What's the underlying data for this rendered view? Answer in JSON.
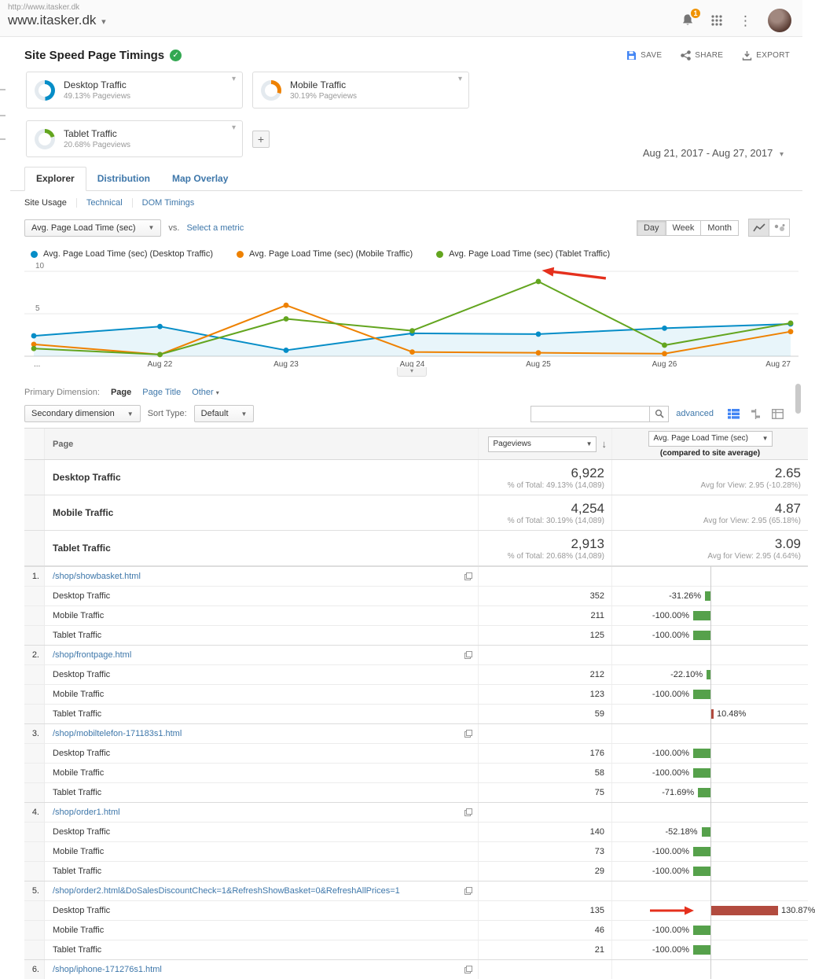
{
  "topbar": {
    "url_small": "http://www.itasker.dk",
    "account_title": "www.itasker.dk",
    "notification_count": "1"
  },
  "header": {
    "title": "Site Speed Page Timings",
    "actions": {
      "save": "SAVE",
      "share": "SHARE",
      "export": "EXPORT"
    },
    "date_range": "Aug 21, 2017 - Aug 27, 2017"
  },
  "segments": [
    {
      "name": "Desktop Traffic",
      "detail": "49.13% Pageviews",
      "pct": 49.13,
      "color": "#058dc7"
    },
    {
      "name": "Mobile Traffic",
      "detail": "30.19% Pageviews",
      "pct": 30.19,
      "color": "#ee8100"
    },
    {
      "name": "Tablet Traffic",
      "detail": "20.68% Pageviews",
      "pct": 20.68,
      "color": "#63a51f"
    }
  ],
  "tabs": [
    "Explorer",
    "Distribution",
    "Map Overlay"
  ],
  "subtabs": [
    "Site Usage",
    "Technical",
    "DOM Timings"
  ],
  "metric_bar": {
    "metric": "Avg. Page Load Time (sec)",
    "vs_label": "vs.",
    "select_metric": "Select a metric",
    "granularity": [
      "Day",
      "Week",
      "Month"
    ],
    "granularity_active": "Day"
  },
  "chart_data": {
    "type": "line",
    "x": [
      "...",
      "Aug 22",
      "Aug 23",
      "Aug 24",
      "Aug 25",
      "Aug 26",
      "Aug 27"
    ],
    "series": [
      {
        "name": "Avg. Page Load Time (sec) (Desktop Traffic)",
        "color": "#058dc7",
        "area": true,
        "values": [
          2.4,
          3.5,
          0.7,
          2.7,
          2.6,
          3.3,
          3.8
        ]
      },
      {
        "name": "Avg. Page Load Time (sec) (Mobile Traffic)",
        "color": "#ee8100",
        "values": [
          1.4,
          0.2,
          6.0,
          0.5,
          0.4,
          0.3,
          2.9
        ]
      },
      {
        "name": "Avg. Page Load Time (sec) (Tablet Traffic)",
        "color": "#63a51f",
        "values": [
          0.9,
          0.2,
          4.4,
          3.0,
          8.8,
          1.3,
          3.9
        ]
      }
    ],
    "ylim": [
      0,
      10
    ],
    "yticks": [
      5,
      10
    ],
    "legend_position": "top",
    "annotation": "red arrow pointing at Tablet Traffic peak on Aug 25"
  },
  "dimension_bar": {
    "label": "Primary Dimension:",
    "items": [
      "Page",
      "Page Title",
      "Other"
    ]
  },
  "table": {
    "controls": {
      "secondary_dimension": "Secondary dimension",
      "sort_type_label": "Sort Type:",
      "sort_type_value": "Default",
      "search_value": "",
      "advanced": "advanced"
    },
    "columns": {
      "page": "Page",
      "pageviews": "Pageviews",
      "metric": "Avg. Page Load Time (sec)",
      "metric_note": "(compared to site average)"
    },
    "summary_rows": [
      {
        "label": "Desktop Traffic",
        "pageviews": "6,922",
        "pageviews_note": "% of Total: 49.13% (14,089)",
        "value": "2.65",
        "value_note": "Avg for View: 2.95 (-10.28%)"
      },
      {
        "label": "Mobile Traffic",
        "pageviews": "4,254",
        "pageviews_note": "% of Total: 30.19% (14,089)",
        "value": "4.87",
        "value_note": "Avg for View: 2.95 (65.18%)"
      },
      {
        "label": "Tablet Traffic",
        "pageviews": "2,913",
        "pageviews_note": "% of Total: 20.68% (14,089)",
        "value": "3.09",
        "value_note": "Avg for View: 2.95 (4.64%)"
      }
    ],
    "groups": [
      {
        "index": "1.",
        "page": "/shop/showbasket.html",
        "rows": [
          {
            "label": "Desktop Traffic",
            "pageviews": "352",
            "delta": "-31.26%",
            "delta_value": -31.26
          },
          {
            "label": "Mobile Traffic",
            "pageviews": "211",
            "delta": "-100.00%",
            "delta_value": -100
          },
          {
            "label": "Tablet Traffic",
            "pageviews": "125",
            "delta": "-100.00%",
            "delta_value": -100
          }
        ]
      },
      {
        "index": "2.",
        "page": "/shop/frontpage.html",
        "rows": [
          {
            "label": "Desktop Traffic",
            "pageviews": "212",
            "delta": "-22.10%",
            "delta_value": -22.1
          },
          {
            "label": "Mobile Traffic",
            "pageviews": "123",
            "delta": "-100.00%",
            "delta_value": -100
          },
          {
            "label": "Tablet Traffic",
            "pageviews": "59",
            "delta": "10.48%",
            "delta_value": 10.48
          }
        ]
      },
      {
        "index": "3.",
        "page": "/shop/mobiltelefon-171183s1.html",
        "rows": [
          {
            "label": "Desktop Traffic",
            "pageviews": "176",
            "delta": "-100.00%",
            "delta_value": -100
          },
          {
            "label": "Mobile Traffic",
            "pageviews": "58",
            "delta": "-100.00%",
            "delta_value": -100
          },
          {
            "label": "Tablet Traffic",
            "pageviews": "75",
            "delta": "-71.69%",
            "delta_value": -71.69
          }
        ]
      },
      {
        "index": "4.",
        "page": "/shop/order1.html",
        "rows": [
          {
            "label": "Desktop Traffic",
            "pageviews": "140",
            "delta": "-52.18%",
            "delta_value": -52.18
          },
          {
            "label": "Mobile Traffic",
            "pageviews": "73",
            "delta": "-100.00%",
            "delta_value": -100
          },
          {
            "label": "Tablet Traffic",
            "pageviews": "29",
            "delta": "-100.00%",
            "delta_value": -100
          }
        ]
      },
      {
        "index": "5.",
        "page": "/shop/order2.html&DoSalesDiscountCheck=1&RefreshShowBasket=0&RefreshAllPrices=1",
        "rows": [
          {
            "label": "Desktop Traffic",
            "pageviews": "135",
            "delta": "130.87%",
            "delta_value": 130.87,
            "arrow": true
          },
          {
            "label": "Mobile Traffic",
            "pageviews": "46",
            "delta": "-100.00%",
            "delta_value": -100
          },
          {
            "label": "Tablet Traffic",
            "pageviews": "21",
            "delta": "-100.00%",
            "delta_value": -100
          }
        ]
      },
      {
        "index": "6.",
        "page": "/shop/iphone-171276s1.html",
        "rows": []
      }
    ]
  }
}
